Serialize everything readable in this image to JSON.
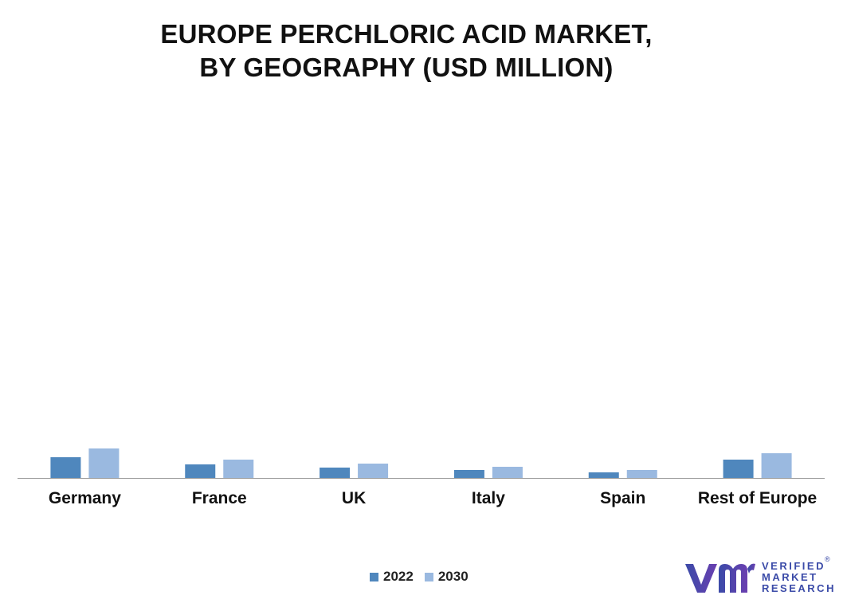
{
  "title_line1": "EUROPE PERCHLORIC ACID MARKET,",
  "title_line2": "BY GEOGRAPHY (USD MILLION)",
  "colors": {
    "s2022": "#4f87bd",
    "s2030": "#9ab9e0",
    "axis": "#9a9a9a",
    "brand": "#3b4ba8"
  },
  "chart_data": {
    "type": "bar",
    "categories": [
      "Germany",
      "France",
      "UK",
      "Italy",
      "Spain",
      "Rest of Europe"
    ],
    "series": [
      {
        "name": "2022",
        "values": [
          26,
          17,
          13,
          10,
          7,
          23
        ]
      },
      {
        "name": "2030",
        "values": [
          37,
          23,
          18,
          14,
          10,
          31
        ]
      }
    ],
    "ylim": [
      0,
      460
    ],
    "legend": "bottom-center"
  },
  "legend": {
    "item1": "2022",
    "item2": "2030"
  },
  "logo": {
    "line1": "VERIFIED",
    "line2": "MARKET",
    "line3": "RESEARCH",
    "reg": "®"
  }
}
